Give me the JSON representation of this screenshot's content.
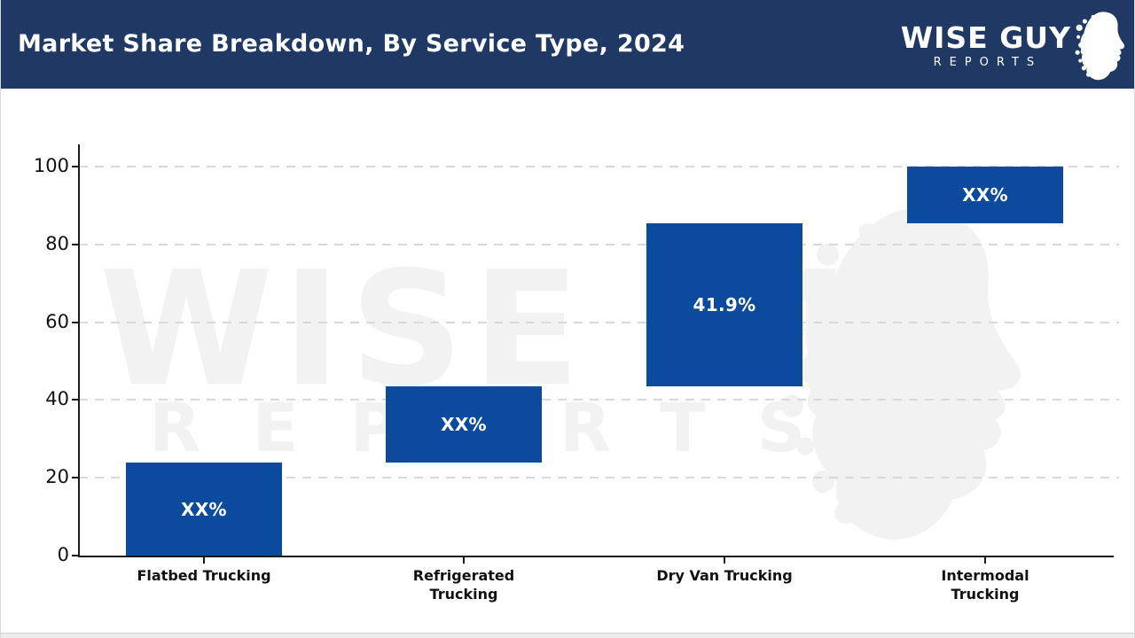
{
  "header": {
    "title": "Market Share Breakdown, By Service Type, 2024",
    "brand_line1": "WISE GUY",
    "brand_line2": "REPORTS",
    "bg_color": "#1f3864"
  },
  "watermark": {
    "line1": "WISE GU",
    "line2": "REPORTS",
    "color": "#f2f2f2"
  },
  "chart_data": {
    "type": "bar",
    "subtype": "waterfall-floating-bars",
    "title": "Market Share Breakdown, By Service Type, 2024",
    "unit": "%",
    "categories": [
      "Flatbed Trucking",
      "Refrigerated Trucking",
      "Dry Van Trucking",
      "Intermodal Trucking"
    ],
    "categories_display": [
      [
        "Flatbed Trucking"
      ],
      [
        "Refrigerated",
        "Trucking"
      ],
      [
        "Dry Van Trucking"
      ],
      [
        "Intermodal",
        "Trucking"
      ]
    ],
    "series": [
      {
        "name": "Market Share",
        "segments": [
          {
            "category": "Flatbed Trucking",
            "start": 0,
            "end": 23.9,
            "label": "XX%"
          },
          {
            "category": "Refrigerated Trucking",
            "start": 23.9,
            "end": 43.5,
            "label": "XX%"
          },
          {
            "category": "Dry Van Trucking",
            "start": 43.5,
            "end": 85.4,
            "value": 41.9,
            "label": "41.9%"
          },
          {
            "category": "Intermodal Trucking",
            "start": 85.4,
            "end": 100,
            "label": "XX%"
          }
        ]
      }
    ],
    "xlabel": "",
    "ylabel": "",
    "ylim": [
      0,
      100
    ],
    "yticks": [
      0,
      20,
      40,
      60,
      80,
      100
    ],
    "grid": "horizontal-dashed",
    "legend": "none",
    "bar_color": "#0b4a9c",
    "grid_color": "#d9d9d9",
    "axis_color": "#1a1a1a"
  }
}
